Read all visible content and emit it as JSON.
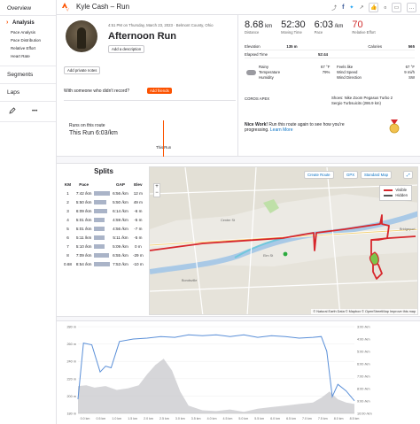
{
  "sidebar": {
    "overview": "Overview",
    "analysis": "Analysis",
    "sub_items": [
      "Pace Analysis",
      "Pace Distribution",
      "Relative Effort",
      "Heart Rate"
    ],
    "segments": "Segments",
    "laps": "Laps",
    "more": "•••"
  },
  "header": {
    "title": "Kyle Cash – Run",
    "kudos_count": "0"
  },
  "activity": {
    "meta": "4:51 PM on Thursday, March 23, 2023 · Belmont County, Ohio",
    "title": "Afternoon Run",
    "add_description": "Add a description",
    "add_private_notes": "Add private notes",
    "with_someone": "With someone who didn't record?",
    "add_friends": "Add friends",
    "runs_on_route": "Runs on this route",
    "this_run": "This Run 6:03/km",
    "this_run_marker": "This Run"
  },
  "stats": [
    {
      "value": "8.68",
      "unit": " km",
      "label": "Distance"
    },
    {
      "value": "52:30",
      "unit": "",
      "label": "Moving Time"
    },
    {
      "value": "6:03",
      "unit": " /km",
      "label": "Pace"
    },
    {
      "value": "70",
      "unit": "",
      "label": "Relative Effort"
    }
  ],
  "details": [
    {
      "k": "Elevation",
      "v": "135 m",
      "k2": "Calories",
      "v2": "565"
    },
    {
      "k": "Elapsed Time",
      "v": "52:44",
      "k2": "",
      "v2": ""
    }
  ],
  "weather": {
    "labels": [
      "Rainy",
      "Temperature",
      "Humidity"
    ],
    "values": [
      "",
      "67 °F",
      "79%"
    ],
    "labels2": [
      "Feels like",
      "Wind Speed",
      "Wind Direction"
    ],
    "values2": [
      "67 °F",
      "9 mi/h",
      "SW"
    ]
  },
  "device": "COROS APEX",
  "shoes": {
    "line1": "Shoes: Nike Zoom Pegasus Turbo 2",
    "line2": "Sergio Turbsuicits (286.9 km)"
  },
  "nice_work": {
    "bold": "Nice Work!",
    "text": " Run this route again to see how you're progressing.",
    "link": "Learn More"
  },
  "splits": {
    "title": "Splits",
    "headers": [
      "KM",
      "Pace",
      "",
      "GAP",
      "Elev"
    ],
    "rows": [
      {
        "km": "1",
        "pace": "7:42 /km",
        "gap": "6:56 /km",
        "elev": "12 m",
        "frac": 1.0
      },
      {
        "km": "2",
        "pace": "5:50 /km",
        "gap": "5:50 /km",
        "elev": "49 m",
        "frac": 0.76
      },
      {
        "km": "3",
        "pace": "6:09 /km",
        "gap": "6:14 /km",
        "elev": "-6 m",
        "frac": 0.8
      },
      {
        "km": "4",
        "pace": "5:01 /km",
        "gap": "4:59 /km",
        "elev": "-5 m",
        "frac": 0.65
      },
      {
        "km": "5",
        "pace": "5:01 /km",
        "gap": "4:56 /km",
        "elev": "-7 m",
        "frac": 0.65
      },
      {
        "km": "6",
        "pace": "5:11 /km",
        "gap": "5:11 /km",
        "elev": "-5 m",
        "frac": 0.67
      },
      {
        "km": "7",
        "pace": "5:10 /km",
        "gap": "5:09 /km",
        "elev": "0 m",
        "frac": 0.67
      },
      {
        "km": "8",
        "pace": "7:09 /km",
        "gap": "6:55 /km",
        "elev": "-29 m",
        "frac": 0.93
      },
      {
        "km": "0.68",
        "pace": "8:54 /km",
        "gap": "7:53 /km",
        "elev": "-10 m",
        "frac": 1.0
      }
    ]
  },
  "map": {
    "create_route": "Create Route",
    "gpx": "GPX",
    "standard_map": "Standard Map",
    "legend_visible": "Visible",
    "legend_hidden": "Hidden",
    "attribution": "© Natural Earth Data © Mapbox © OpenStreetMap Improve this map",
    "labels": [
      "Bondsville",
      "Bridgeport",
      "Elm St",
      "Center St"
    ]
  },
  "elevation_chart": {
    "x_ticks": [
      "0.0 km",
      "0.5 km",
      "1.0 km",
      "1.5 km",
      "2.0 km",
      "2.5 km",
      "3.0 km",
      "3.5 km",
      "4.0 km",
      "4.5 km",
      "5.0 km",
      "5.5 km",
      "6.0 km",
      "6.5 km",
      "7.0 km",
      "7.5 km",
      "8.0 km",
      "8.5 km"
    ],
    "left_ticks": [
      "280 m",
      "260 m",
      "240 m",
      "220 m",
      "200 m",
      "180 m"
    ],
    "right_ticks": [
      "3:00 /km",
      "4:00 /km",
      "5:00 /km",
      "6:00 /km",
      "7:00 /km",
      "8:00 /km",
      "9:00 /km",
      "10:00 /km"
    ],
    "colors": {
      "pace": "#5a8fd8",
      "elevation": "#c8c8cc"
    }
  },
  "colors": {
    "brand": "#fc5200",
    "relative_effort": "#d02b2b",
    "route": "#d7262b"
  }
}
